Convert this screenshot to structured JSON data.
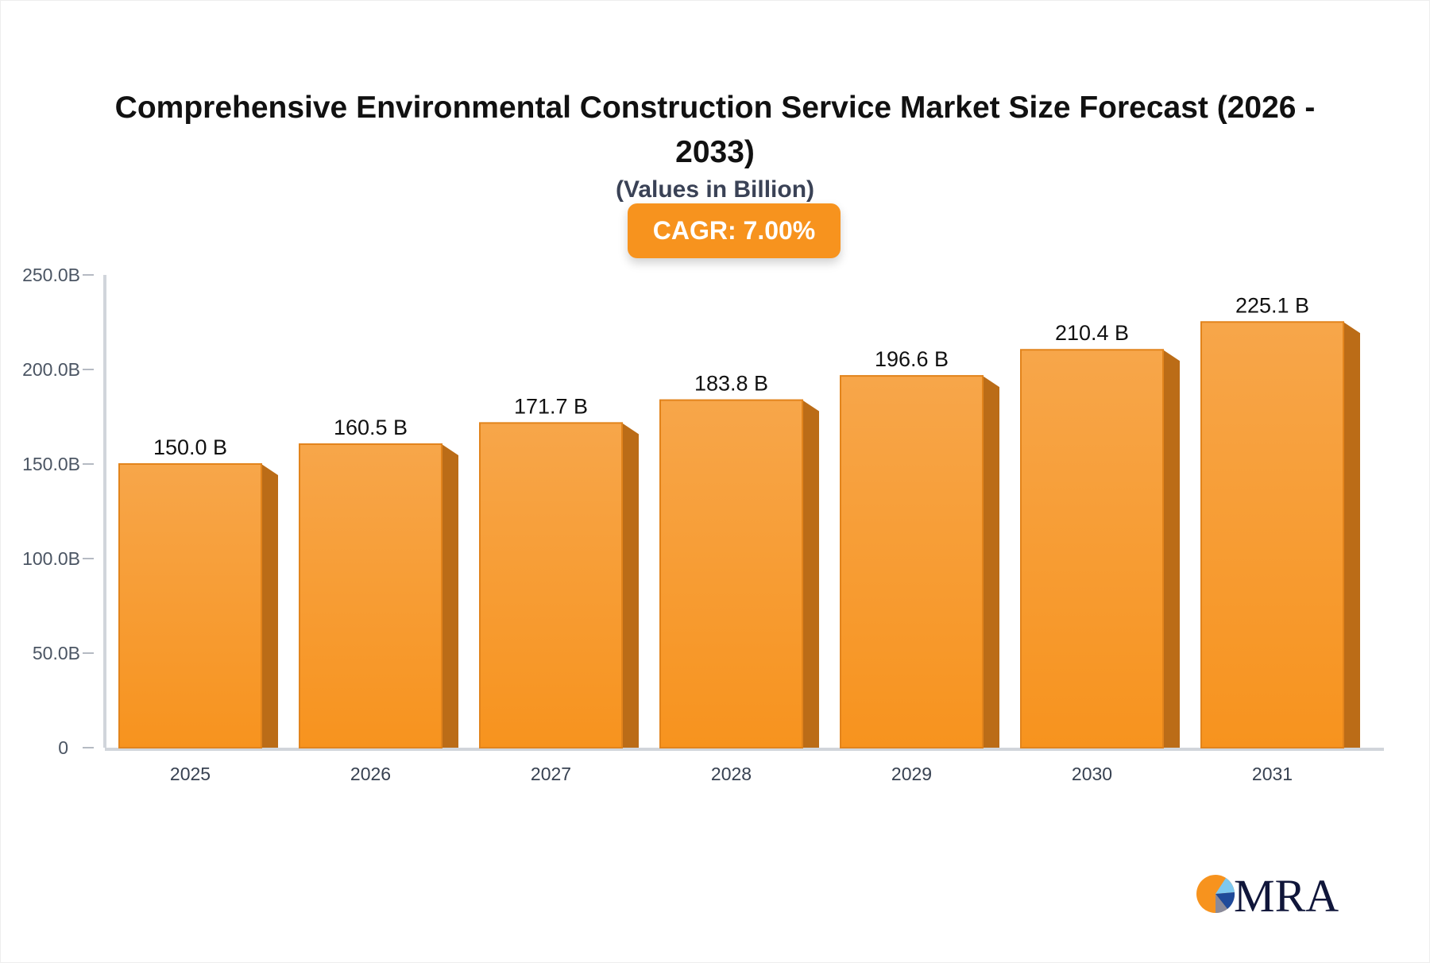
{
  "chart_data": {
    "type": "bar",
    "title": "Comprehensive Environmental Construction Service Market Size Forecast (2026 - 2033)",
    "subtitle": "(Values in Billion)",
    "badge": "CAGR: 7.00%",
    "categories": [
      "2025",
      "2026",
      "2027",
      "2028",
      "2029",
      "2030",
      "2031"
    ],
    "values": [
      150.0,
      160.5,
      171.7,
      183.8,
      196.6,
      210.4,
      225.1
    ],
    "data_labels": [
      "150.0 B",
      "160.5 B",
      "171.7 B",
      "183.8 B",
      "196.6 B",
      "210.4 B",
      "225.1 B"
    ],
    "ylim": [
      0,
      250
    ],
    "yticks": [
      0,
      50,
      100,
      150,
      200,
      250
    ],
    "ytick_labels": [
      "0",
      "50.0B",
      "100.0B",
      "150.0B",
      "200.0B",
      "250.0B"
    ],
    "xlabel": "",
    "ylabel": "",
    "grid": false,
    "colors": {
      "bar_top": "#f7a64a",
      "bar_bottom": "#f7931e",
      "bar_side": "#bb6c17",
      "badge": "#f7931e"
    }
  },
  "logo": {
    "text": "MRA"
  }
}
